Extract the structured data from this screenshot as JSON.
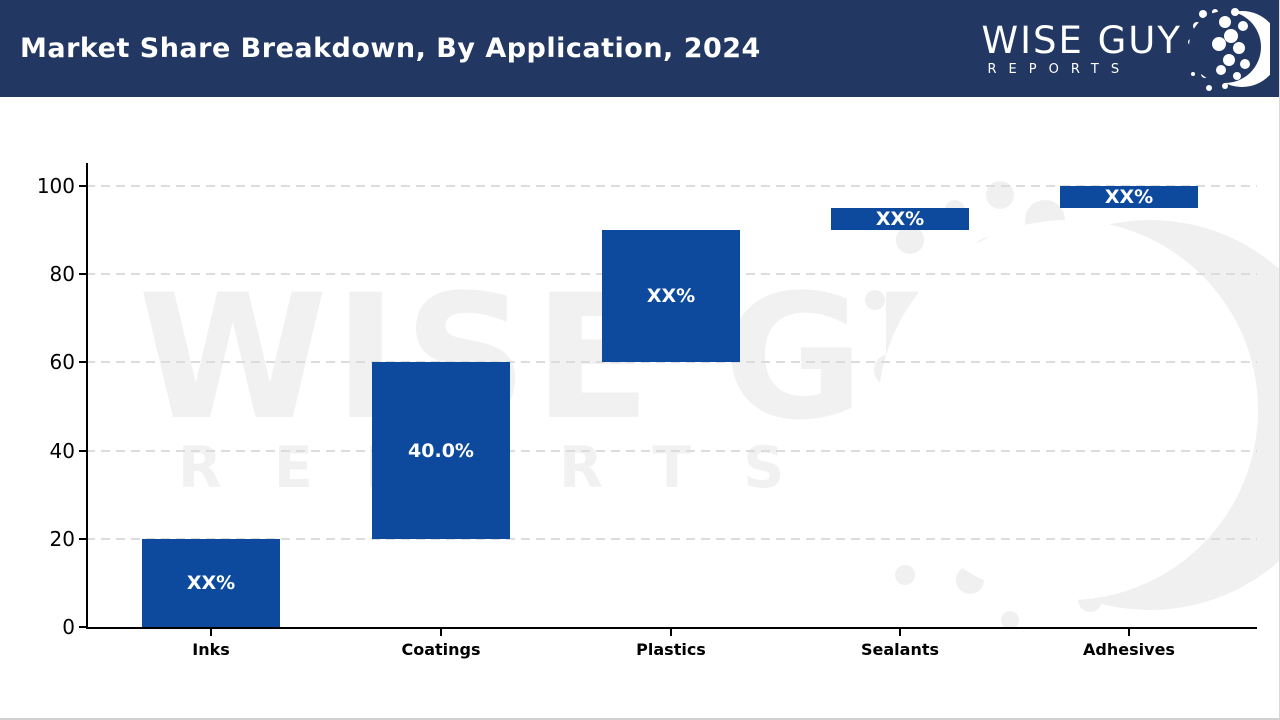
{
  "header": {
    "title": "Market Share Breakdown, By Application, 2024",
    "background_color": "#223863",
    "logo": {
      "brand": "WISE GUY",
      "sub": "REPORTS"
    }
  },
  "watermark": {
    "brand": "WISE GUY",
    "sub": "REPORTS"
  },
  "chart_data": {
    "type": "bar",
    "subtype": "waterfall",
    "title": "Market Share Breakdown, By Application, 2024",
    "categories": [
      "Inks",
      "Coatings",
      "Plastics",
      "Sealants",
      "Adhesives"
    ],
    "bars": [
      {
        "category": "Inks",
        "start": 0,
        "end": 20,
        "value": 20,
        "label": "XX%"
      },
      {
        "category": "Coatings",
        "start": 20,
        "end": 60,
        "value": 40,
        "label": "40.0%"
      },
      {
        "category": "Plastics",
        "start": 60,
        "end": 90,
        "value": 30,
        "label": "XX%"
      },
      {
        "category": "Sealants",
        "start": 90,
        "end": 95,
        "value": 5,
        "label": "XX%"
      },
      {
        "category": "Adhesives",
        "start": 95,
        "end": 100,
        "value": 5,
        "label": "XX%"
      }
    ],
    "yticks": [
      0,
      20,
      40,
      60,
      80,
      100
    ],
    "ylim": [
      0,
      105
    ],
    "xlabel": "",
    "ylabel": "",
    "grid": "horizontal-dashed",
    "legend": "none",
    "bar_color": "#0d4a9e",
    "bar_label_color": "#ffffff",
    "axis_color": "#000000",
    "grid_color": "#dcdcdc"
  }
}
